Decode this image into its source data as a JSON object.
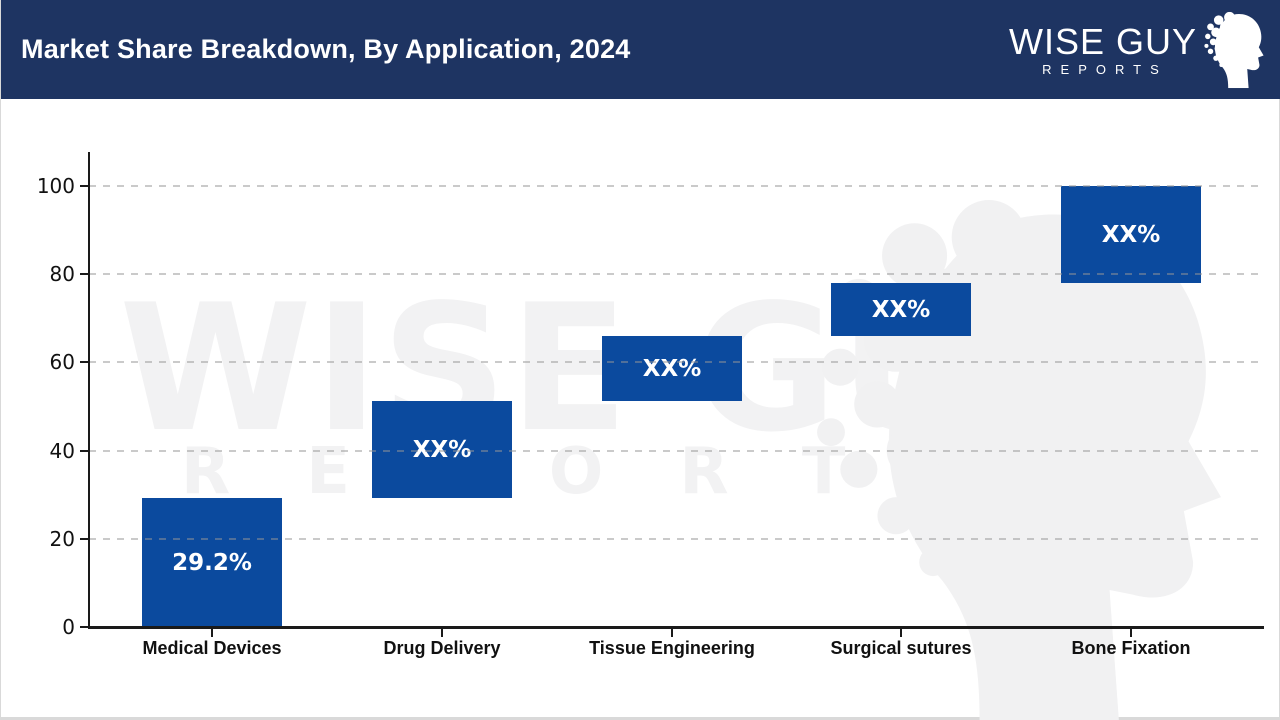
{
  "header": {
    "title": "Market Share Breakdown, By Application, 2024"
  },
  "logo": {
    "primary": "WISE GUY",
    "secondary": "REPORTS"
  },
  "watermark": {
    "primary": "WISE GUY",
    "secondary": "REPORTS"
  },
  "colors": {
    "header_bg": "#1e3462",
    "bar": "#0b4a9e",
    "bar_label_text": "#ffffff",
    "axis": "#1a1a1a",
    "gridline": "#cacaca",
    "watermark": "#f2f2f3",
    "body_bg": "#ffffff"
  },
  "chart_data": {
    "type": "bar",
    "subtype": "waterfall",
    "title": "Market Share Breakdown, By Application, 2024",
    "categories": [
      "Medical Devices",
      "Drug Delivery",
      "Tissue Engineering",
      "Surgical sutures",
      "Bone Fixation"
    ],
    "segments": [
      {
        "category": "Medical Devices",
        "start": 0,
        "end": 29.2,
        "label": "29.2%"
      },
      {
        "category": "Drug Delivery",
        "start": 29.2,
        "end": 51.2,
        "label": "XX%"
      },
      {
        "category": "Tissue Engineering",
        "start": 51.2,
        "end": 65.9,
        "label": "XX%"
      },
      {
        "category": "Surgical sutures",
        "start": 65.9,
        "end": 78,
        "label": "XX%"
      },
      {
        "category": "Bone Fixation",
        "start": 78,
        "end": 100,
        "label": "XX%"
      }
    ],
    "yticks": [
      0,
      20,
      40,
      60,
      80,
      100
    ],
    "ylim": [
      0,
      100
    ],
    "xlabel": "",
    "ylabel": "",
    "grid": true,
    "grid_style": "dashed",
    "legend": "none",
    "value_unit": "%"
  }
}
